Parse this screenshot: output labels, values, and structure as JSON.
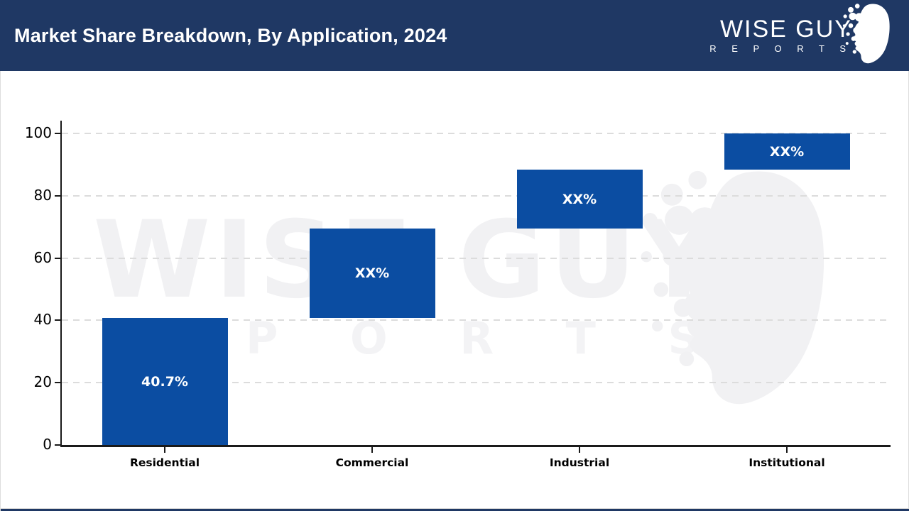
{
  "header": {
    "title": "Market Share Breakdown, By Application, 2024",
    "logo": {
      "line1": "WISE GUY",
      "line2": "R E P O R T S"
    }
  },
  "watermark": {
    "line1": "WISE GUY",
    "line2": "P O R T S"
  },
  "chart_data": {
    "type": "bar",
    "variant": "waterfall",
    "title": "Market Share Breakdown, By Application, 2024",
    "categories": [
      "Residential",
      "Commercial",
      "Industrial",
      "Institutional"
    ],
    "segments": [
      {
        "category": "Residential",
        "start": 0,
        "end": 40.7,
        "label": "40.7%"
      },
      {
        "category": "Commercial",
        "start": 40.7,
        "end": 69.4,
        "label": "XX%"
      },
      {
        "category": "Industrial",
        "start": 69.4,
        "end": 88.3,
        "label": "XX%"
      },
      {
        "category": "Institutional",
        "start": 88.3,
        "end": 100,
        "label": "XX%"
      }
    ],
    "yticks": [
      0,
      20,
      40,
      60,
      80,
      100
    ],
    "ylim": [
      0,
      100
    ],
    "grid": "horizontal-dashed",
    "legend": "none",
    "xlabel": "",
    "ylabel": ""
  },
  "colors": {
    "header_bg": "#1F3864",
    "footer_bg": "#1F3864",
    "bar": "#0B4DA2",
    "grid": "#DCDCDC",
    "axis": "#1A1A1A",
    "watermark": "#F1F1F3",
    "bar_label": "#FFFFFF"
  }
}
